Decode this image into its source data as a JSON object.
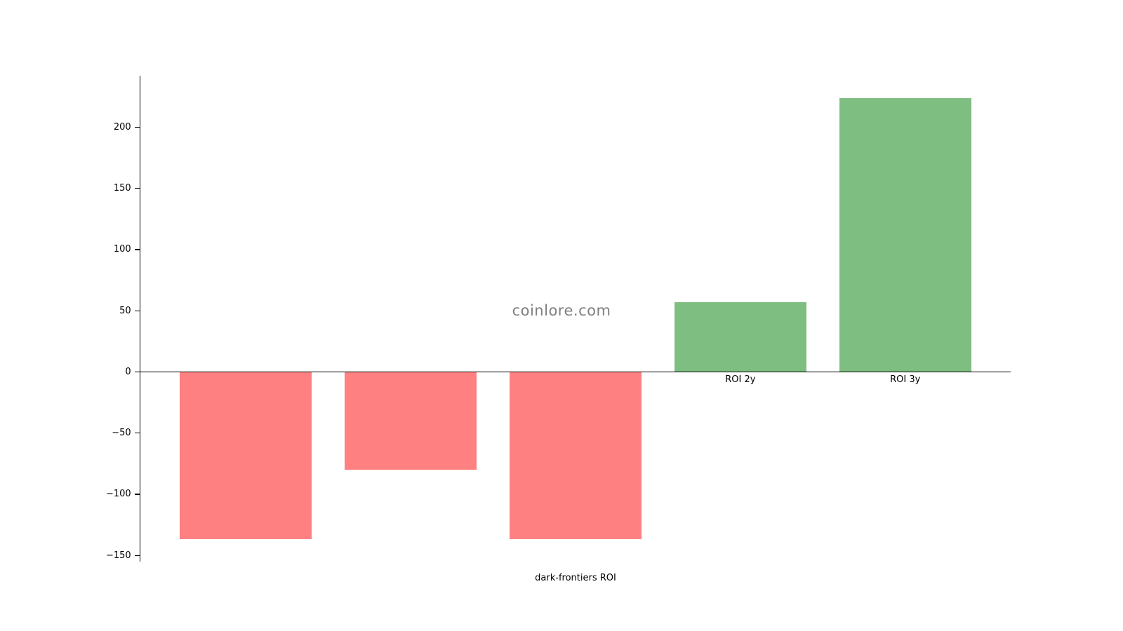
{
  "chart_data": {
    "type": "bar",
    "xlabel": "dark-frontiers ROI",
    "watermark": "coinlore.com",
    "categories": [
      "",
      "",
      "",
      "ROI 2y",
      "ROI 3y"
    ],
    "values": [
      -137,
      -80,
      -137,
      57,
      224
    ],
    "colors": {
      "positive": "#7ebe81",
      "negative": "#ff8080",
      "axis": "#000000",
      "watermark": "#7f7f7f"
    },
    "yticks": [
      -150,
      -100,
      -50,
      0,
      50,
      100,
      150,
      200
    ],
    "ylim": [
      -155.05,
      242.05
    ],
    "grid": false,
    "legend": null
  }
}
